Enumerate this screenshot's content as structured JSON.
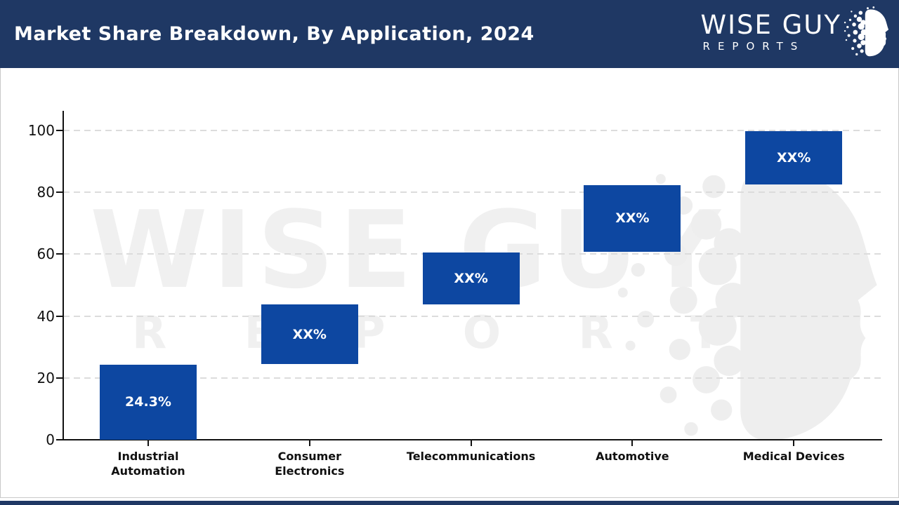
{
  "header": {
    "title": "Market Share Breakdown, By Application, 2024",
    "logo": {
      "name": "WISE GUY",
      "sub": "REPORTS"
    }
  },
  "watermark": {
    "line1": "WISE GUY",
    "line2": "R E P O R T S"
  },
  "colors": {
    "header_bg": "#1f3864",
    "footer_bg": "#1f3864",
    "bar": "#0d47a1",
    "bar_label": "#ffffff",
    "grid": "#dcdcdc",
    "axis": "#111111",
    "tick_text": "#111111",
    "watermark": "#f0f0f0",
    "border": "#c9c9c9"
  },
  "chart_data": {
    "type": "bar",
    "variant": "stepped-waterfall",
    "title": "Market Share Breakdown, By Application, 2024",
    "categories": [
      "Industrial Automation",
      "Consumer Electronics",
      "Telecommunications",
      "Automotive",
      "Medical Devices"
    ],
    "category_display": [
      "Industrial\nAutomation",
      "Consumer\nElectronics",
      "Telecommunications",
      "Automotive",
      "Medical Devices"
    ],
    "bars": [
      {
        "category": "Industrial Automation",
        "start": 0,
        "end": 24.3,
        "label": "24.3%"
      },
      {
        "category": "Consumer Electronics",
        "start": 24.4,
        "end": 43.7,
        "label": "XX%"
      },
      {
        "category": "Telecommunications",
        "start": 43.7,
        "end": 60.6,
        "label": "XX%"
      },
      {
        "category": "Automotive",
        "start": 60.8,
        "end": 82.4,
        "label": "XX%"
      },
      {
        "category": "Medical Devices",
        "start": 82.5,
        "end": 99.8,
        "label": "XX%"
      }
    ],
    "yticks": [
      0,
      20,
      40,
      60,
      80,
      100
    ],
    "ylim": [
      0,
      106
    ],
    "xlabel": "",
    "ylabel": "",
    "grid": "horizontal-dashed",
    "legend": "none"
  }
}
